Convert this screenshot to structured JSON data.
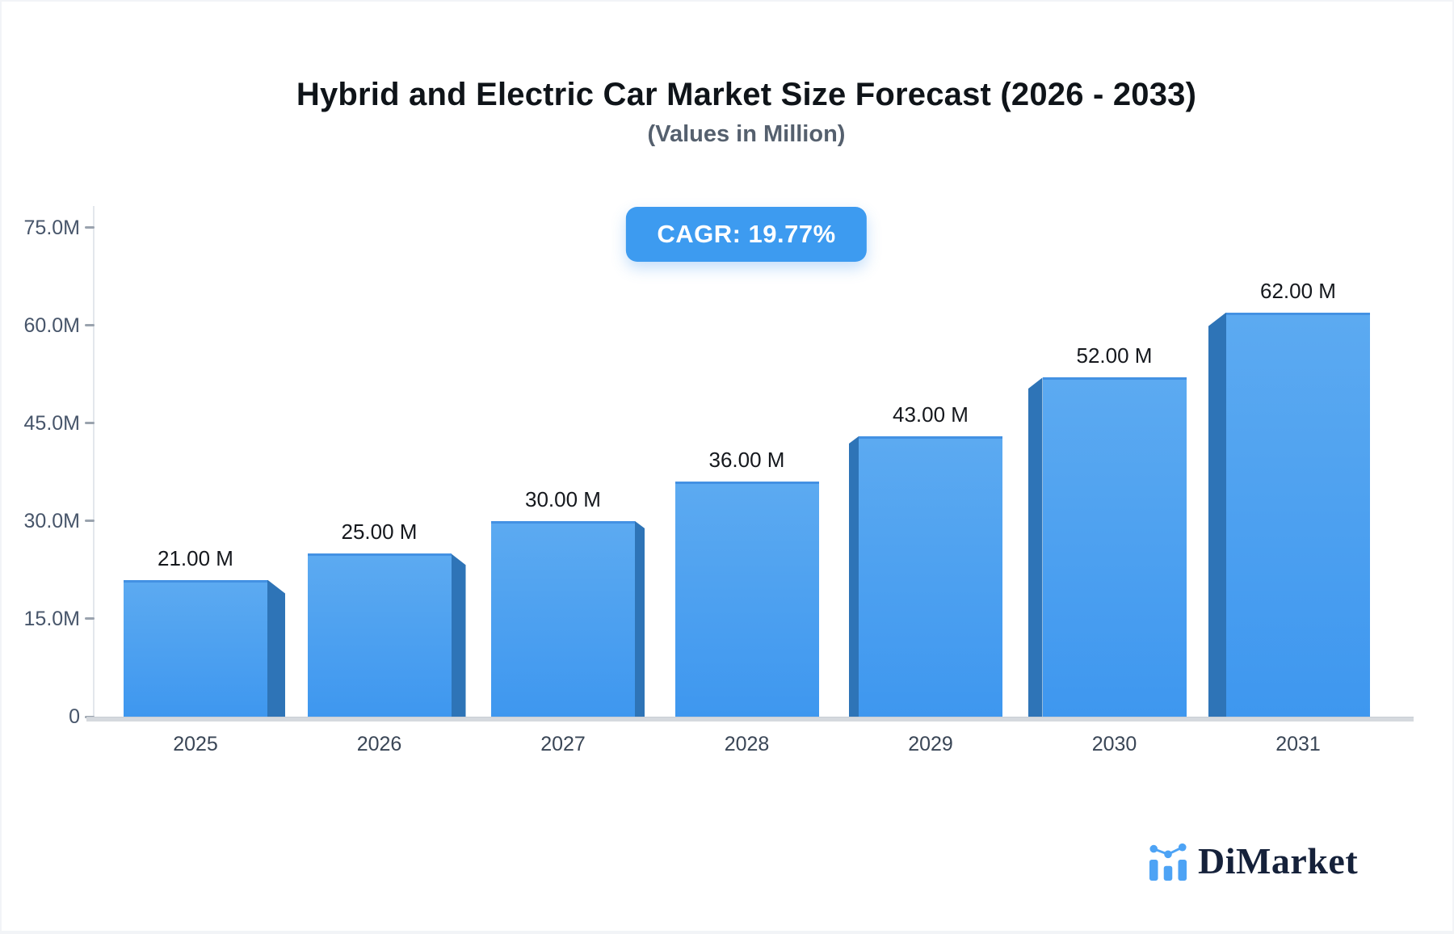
{
  "logo": {
    "text": "DiMarket"
  },
  "colors": {
    "badge_bg": "#3D9BF0",
    "badge_text": "#FFFFFF",
    "bar_face_top": "#5CAAF1",
    "bar_face_bottom": "#3E97EF",
    "bar_top_edge": "#4391E3",
    "bar_side": "#2E74B7",
    "axis_line": "#E3E7EC",
    "baseline": "#D5D9DE",
    "tick_dash": "#9AA3AE",
    "y_label_text": "#47556A",
    "x_label_text": "#3A4656",
    "value_label_text": "#15181D",
    "title_text": "#0F1419",
    "subtitle_text": "#55606E",
    "logo_text": "#15213A",
    "logo_icon": "#4DA3F5"
  },
  "chart_data": {
    "type": "bar",
    "title": "Hybrid and Electric Car Market Size Forecast (2026 - 2033)",
    "subtitle": "(Values in Million)",
    "annotation": "CAGR: 19.77%",
    "categories": [
      "2025",
      "2026",
      "2027",
      "2028",
      "2029",
      "2030",
      "2031"
    ],
    "values": [
      21,
      25,
      30,
      36,
      43,
      52,
      62
    ],
    "value_labels": [
      "21.00 M",
      "25.00 M",
      "30.00 M",
      "36.00 M",
      "43.00 M",
      "52.00 M",
      "62.00 M"
    ],
    "y_ticks": [
      {
        "value": 0,
        "label": "0"
      },
      {
        "value": 15,
        "label": "15.0M"
      },
      {
        "value": 30,
        "label": "30.0M"
      },
      {
        "value": 45,
        "label": "45.0M"
      },
      {
        "value": 60,
        "label": "60.0M"
      },
      {
        "value": 75,
        "label": "75.0M"
      }
    ],
    "ylim": [
      0,
      75
    ],
    "xlabel": "",
    "ylabel": "",
    "grid": false,
    "legend": "none",
    "bar_style": "3d-blue-gradient",
    "units": "Million"
  }
}
